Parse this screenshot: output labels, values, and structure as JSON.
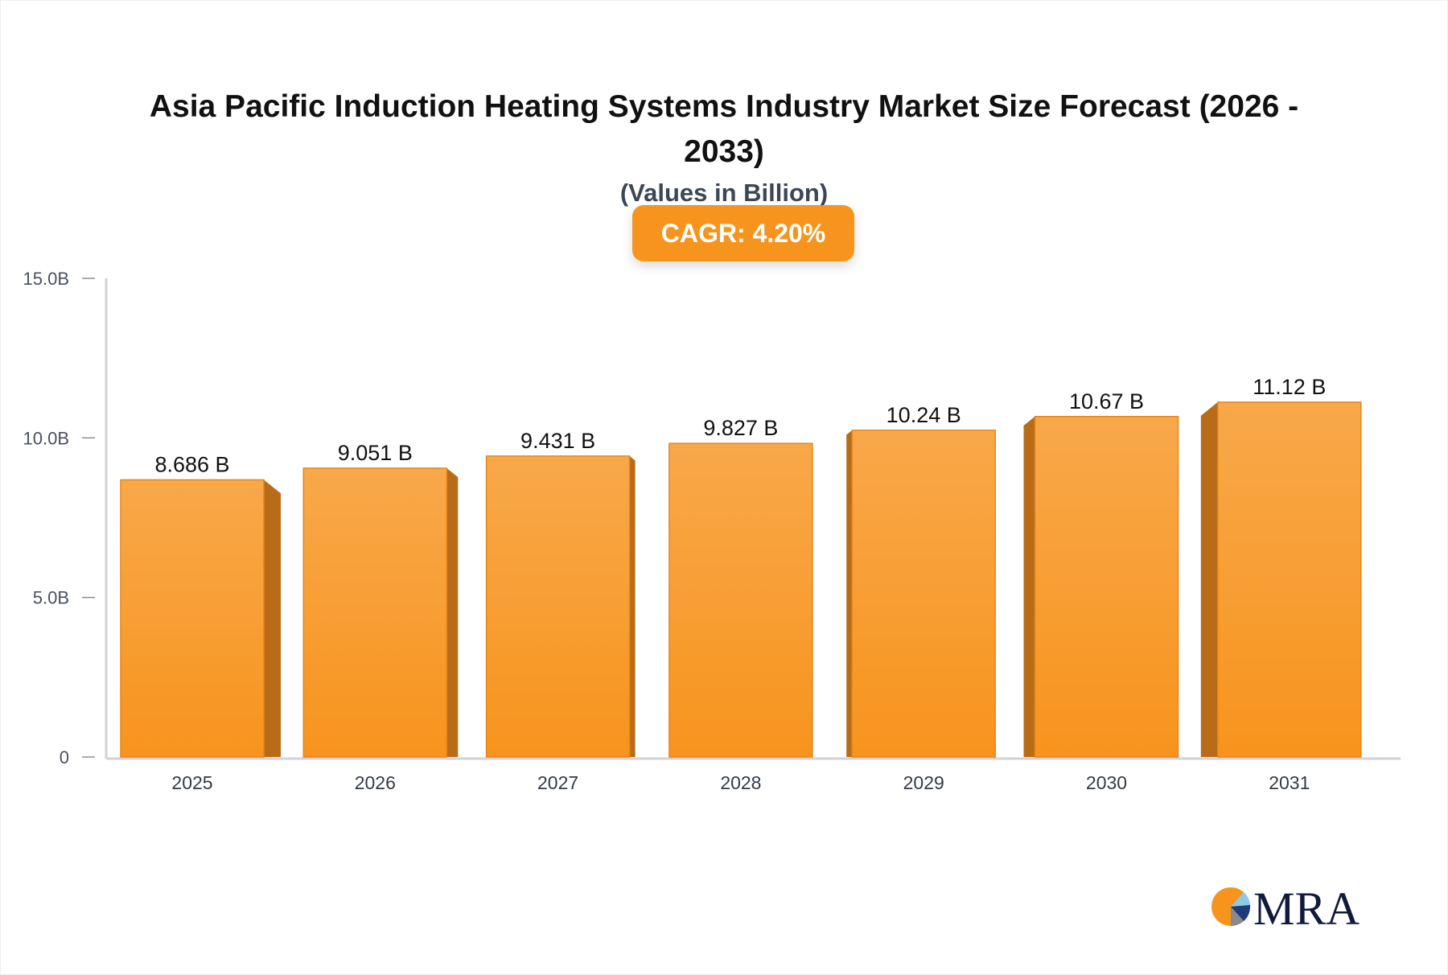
{
  "title": "Asia Pacific Induction Heating Systems Industry Market Size Forecast (2026 - 2033)",
  "subtitle": "(Values in Billion)",
  "cagr_badge": "CAGR: 4.20%",
  "colors": {
    "bar_front": "#f7941d",
    "bar_top_light": "#f8a84a",
    "bar_side": "#b86c18",
    "badge": "#f7941d",
    "axis": "#d0d2d8"
  },
  "logo_text": "MRA",
  "chart_data": {
    "type": "bar",
    "categories": [
      "2025",
      "2026",
      "2027",
      "2028",
      "2029",
      "2030",
      "2031"
    ],
    "values": [
      8.686,
      9.051,
      9.431,
      9.827,
      10.24,
      10.67,
      11.12
    ],
    "data_labels": [
      "8.686 B",
      "9.051 B",
      "9.431 B",
      "9.827 B",
      "10.24 B",
      "10.67 B",
      "11.12 B"
    ],
    "ylim": [
      0,
      15
    ],
    "yticks": [
      0,
      5,
      10,
      15
    ],
    "ytick_labels": [
      "0",
      "5.0B",
      "10.0B",
      "15.0B"
    ],
    "xlabel": "",
    "ylabel": "",
    "grid": false,
    "legend": "none"
  }
}
